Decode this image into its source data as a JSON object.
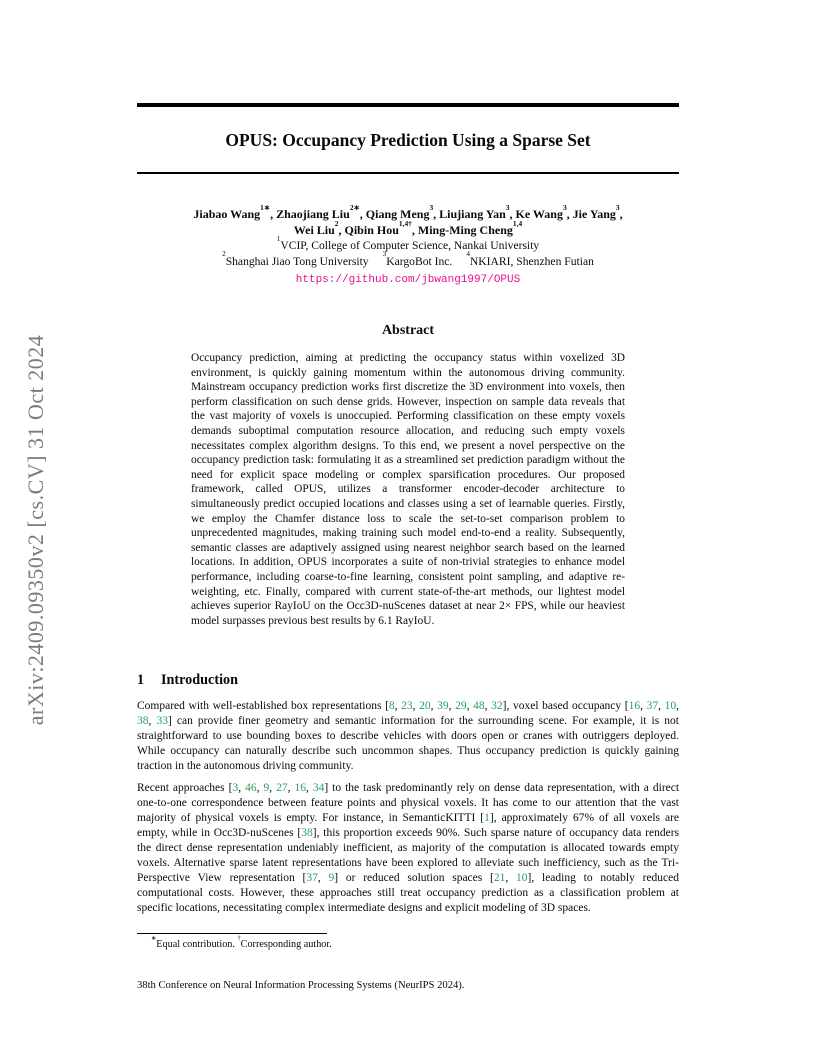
{
  "watermark": {
    "text": "arXiv:2409.09350v2  [cs.CV]  31 Oct 2024"
  },
  "colors": {
    "citation_green": "#2ba05a",
    "link_magenta": "#e8128d",
    "watermark_gray": "#7b7b7b"
  },
  "header": {
    "title": "OPUS: Occupancy Prediction Using a Sparse Set"
  },
  "authors": {
    "line1": [
      {
        "name": "Jiabao Wang",
        "sup": "1∗",
        "sep": ", "
      },
      {
        "name": "Zhaojiang Liu",
        "sup": "2∗",
        "sep": ", "
      },
      {
        "name": "Qiang Meng",
        "sup": "3",
        "sep": ", "
      },
      {
        "name": "Liujiang Yan",
        "sup": "3",
        "sep": ", "
      },
      {
        "name": "Ke Wang",
        "sup": "3",
        "sep": ", "
      },
      {
        "name": "Jie Yang",
        "sup": "3",
        "sep": ","
      }
    ],
    "line2": [
      {
        "name": "Wei Liu",
        "sup": "2",
        "sep": ", "
      },
      {
        "name": "Qibin Hou",
        "sup": "1,4†",
        "sep": ", "
      },
      {
        "name": "Ming-Ming Cheng",
        "sup": "1,4",
        "sep": ""
      }
    ]
  },
  "affiliations": {
    "line1": [
      {
        "sup": "1",
        "text": "VCIP, College of Computer Science, Nankai University"
      }
    ],
    "line2": [
      {
        "sup": "2",
        "text": "Shanghai Jiao Tong University"
      },
      {
        "sup": "3",
        "text": "KargoBot Inc."
      },
      {
        "sup": "4",
        "text": "NKIARI, Shenzhen Futian"
      }
    ],
    "link": "https://github.com/jbwang1997/OPUS"
  },
  "abstract": {
    "heading": "Abstract",
    "text": "Occupancy prediction, aiming at predicting the occupancy status within voxelized 3D environment, is quickly gaining momentum within the autonomous driving community. Mainstream occupancy prediction works first discretize the 3D environment into voxels, then perform classification on such dense grids. However, inspection on sample data reveals that the vast majority of voxels is unoccupied. Performing classification on these empty voxels demands suboptimal computation resource allocation, and reducing such empty voxels necessitates complex algorithm designs. To this end, we present a novel perspective on the occupancy prediction task: formulating it as a streamlined set prediction paradigm without the need for explicit space modeling or complex sparsification procedures. Our proposed framework, called OPUS, utilizes a transformer encoder-decoder architecture to simultaneously predict occupied locations and classes using a set of learnable queries. Firstly, we employ the Chamfer distance loss to scale the set-to-set comparison problem to unprecedented magnitudes, making training such model end-to-end a reality. Subsequently, semantic classes are adaptively assigned using nearest neighbor search based on the learned locations. In addition, OPUS incorporates a suite of non-trivial strategies to enhance model performance, including coarse-to-fine learning, consistent point sampling, and adaptive re-weighting, etc. Finally, compared with current state-of-the-art methods, our lightest model achieves superior RayIoU on the Occ3D-nuScenes dataset at near 2× FPS, while our heaviest model surpasses previous best results by 6.1 RayIoU."
  },
  "section1": {
    "number": "1",
    "title": "Introduction",
    "paragraphs": [
      "Compared with well-established box representations [8, 23, 20, 39, 29, 48, 32], voxel based occupancy [16, 37, 10, 38, 33] can provide finer geometry and semantic information for the surrounding scene. For example, it is not straightforward to use bounding boxes to describe vehicles with doors open or cranes with outriggers deployed. While occupancy can naturally describe such uncommon shapes. Thus occupancy prediction is quickly gaining traction in the autonomous driving community.",
      "Recent approaches [3, 46, 9, 27, 16, 34] to the task predominantly rely on dense data representation, with a direct one-to-one correspondence between feature points and physical voxels. It has come to our attention that the vast majority of physical voxels is empty. For instance, in SemanticKITTI [1], approximately 67% of all voxels are empty, while in Occ3D-nuScenes [38], this proportion exceeds 90%. Such sparse nature of occupancy data renders the direct dense representation undeniably inefficient, as majority of the computation is allocated towards empty voxels. Alternative sparse latent representations have been explored to alleviate such inefficiency, such as the Tri-Perspective View representation [37, 9] or reduced solution spaces [21, 10], leading to notably reduced computational costs. However, these approaches still treat occupancy prediction as a classification problem at specific locations, necessitating complex intermediate designs and explicit modeling of 3D spaces."
    ]
  },
  "footnote": {
    "items": [
      {
        "sup": "∗",
        "text": "Equal contribution."
      },
      {
        "sup": "†",
        "text": "Corresponding author."
      }
    ]
  },
  "footer": {
    "text": "38th Conference on Neural Information Processing Systems (NeurIPS 2024)."
  }
}
